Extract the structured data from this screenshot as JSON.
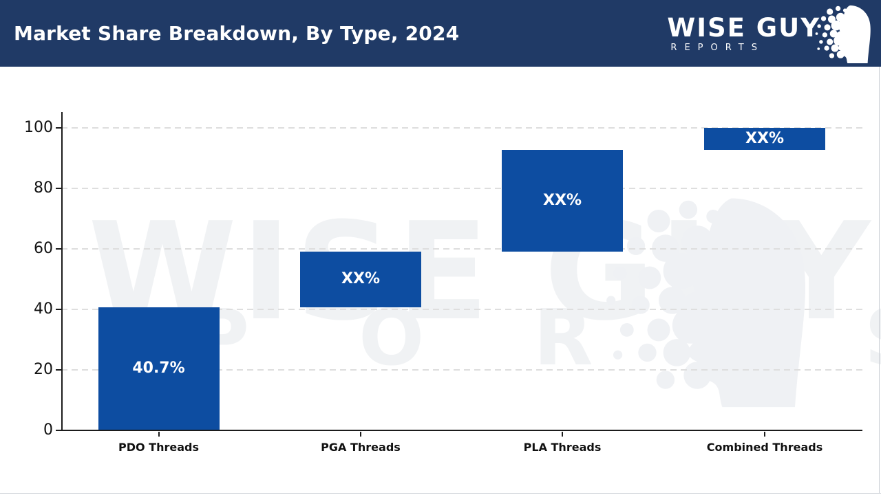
{
  "header": {
    "title": "Market Share Breakdown, By Type, 2024",
    "logo": {
      "brand_top": "WISE GUY",
      "brand_bottom": "REPORTS"
    }
  },
  "watermark": {
    "text_top": "WISE GUY",
    "text_bottom": "P O R T S"
  },
  "chart_data": {
    "type": "waterfall-bar",
    "title": "Market Share Breakdown, By Type, 2024",
    "categories": [
      "PDO Threads",
      "PGA Threads",
      "PLA Threads",
      "Combined Threads"
    ],
    "bars": [
      {
        "category": "PDO Threads",
        "start": 0,
        "end": 40.7,
        "label": "40.7%"
      },
      {
        "category": "PGA Threads",
        "start": 40.7,
        "end": 59.2,
        "label": "XX%"
      },
      {
        "category": "PLA Threads",
        "start": 59.2,
        "end": 92.7,
        "label": "XX%"
      },
      {
        "category": "Combined Threads",
        "start": 92.7,
        "end": 100,
        "label": "XX%"
      }
    ],
    "ylim": [
      0,
      100
    ],
    "yticks": [
      0,
      20,
      40,
      60,
      80,
      100
    ],
    "grid": "horizontal-dashed",
    "legend": "none",
    "bar_color": "#0d4da1",
    "bar_label_color": "#ffffff"
  },
  "colors": {
    "header_bg": "#203a66",
    "bar": "#0d4da1",
    "axis": "#1b1b1b",
    "grid": "#dedede",
    "watermark": "#f0f2f4"
  }
}
